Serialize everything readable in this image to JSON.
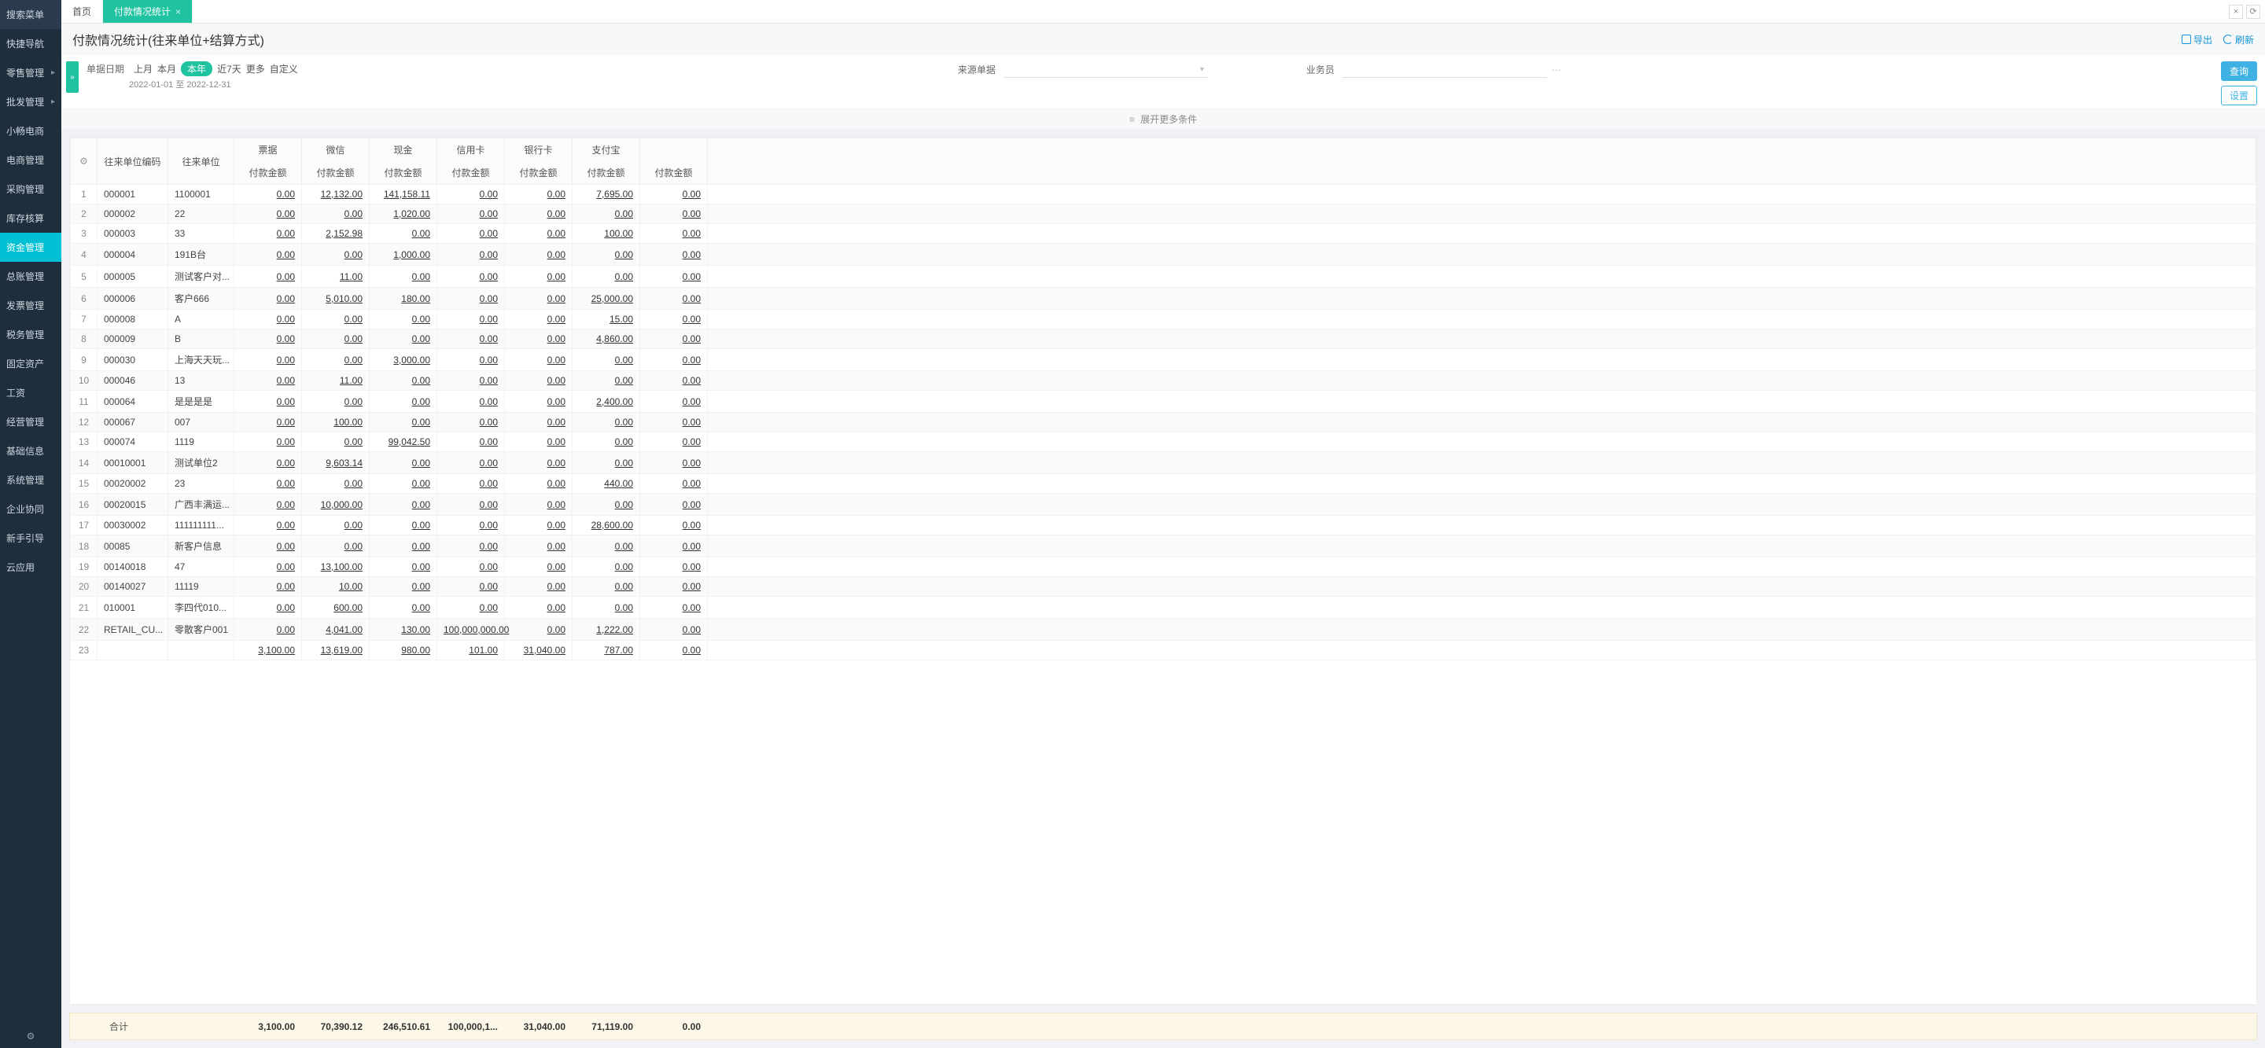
{
  "sidebar": {
    "items": [
      {
        "label": "搜索菜单",
        "caret": false
      },
      {
        "label": "快捷导航",
        "caret": false
      },
      {
        "label": "零售管理",
        "caret": true
      },
      {
        "label": "批发管理",
        "caret": true
      },
      {
        "label": "小畅电商",
        "caret": false
      },
      {
        "label": "电商管理",
        "caret": false
      },
      {
        "label": "采购管理",
        "caret": false
      },
      {
        "label": "库存核算",
        "caret": false
      },
      {
        "label": "资金管理",
        "caret": false,
        "active": true
      },
      {
        "label": "总账管理",
        "caret": false
      },
      {
        "label": "发票管理",
        "caret": false
      },
      {
        "label": "税务管理",
        "caret": false
      },
      {
        "label": "固定资产",
        "caret": false
      },
      {
        "label": "工资",
        "caret": false
      },
      {
        "label": "经营管理",
        "caret": false
      },
      {
        "label": "基础信息",
        "caret": false
      },
      {
        "label": "系统管理",
        "caret": false
      },
      {
        "label": "企业协同",
        "caret": false
      },
      {
        "label": "新手引导",
        "caret": false
      },
      {
        "label": "云应用",
        "caret": false
      }
    ]
  },
  "tabs": [
    {
      "label": "首页",
      "closable": false
    },
    {
      "label": "付款情况统计",
      "closable": true,
      "active": true
    }
  ],
  "header": {
    "title": "付款情况统计(往来单位+结算方式)",
    "export": "导出",
    "refresh": "刷新"
  },
  "filter": {
    "date_label": "单据日期",
    "ranges": [
      "上月",
      "本月",
      "本年",
      "近7天",
      "更多",
      "自定义"
    ],
    "selected_range": "本年",
    "date_text": "2022-01-01 至 2022-12-31",
    "source_label": "来源单据",
    "source_value": "",
    "staff_label": "业务员",
    "staff_value": "",
    "btn_query": "查询",
    "btn_config": "设置",
    "expand_more": "展开更多条件"
  },
  "table": {
    "col_code": "往来单位编码",
    "col_name": "往来单位",
    "group_cols": [
      "票据",
      "微信",
      "现金",
      "信用卡",
      "银行卡",
      "支付宝",
      ""
    ],
    "sub_col": "付款金额",
    "rows": [
      {
        "idx": "1",
        "code": "000001",
        "name": "1100001",
        "v": [
          "0.00",
          "12,132.00",
          "141,158.11",
          "0.00",
          "0.00",
          "7,695.00",
          "0.00"
        ]
      },
      {
        "idx": "2",
        "code": "000002",
        "name": "22",
        "v": [
          "0.00",
          "0.00",
          "1,020.00",
          "0.00",
          "0.00",
          "0.00",
          "0.00"
        ]
      },
      {
        "idx": "3",
        "code": "000003",
        "name": "33",
        "v": [
          "0.00",
          "2,152.98",
          "0.00",
          "0.00",
          "0.00",
          "100.00",
          "0.00"
        ]
      },
      {
        "idx": "4",
        "code": "000004",
        "name": "191B台",
        "v": [
          "0.00",
          "0.00",
          "1,000.00",
          "0.00",
          "0.00",
          "0.00",
          "0.00"
        ]
      },
      {
        "idx": "5",
        "code": "000005",
        "name": "测试客户对...",
        "v": [
          "0.00",
          "11.00",
          "0.00",
          "0.00",
          "0.00",
          "0.00",
          "0.00"
        ]
      },
      {
        "idx": "6",
        "code": "000006",
        "name": "客户666",
        "v": [
          "0.00",
          "5,010.00",
          "180.00",
          "0.00",
          "0.00",
          "25,000.00",
          "0.00"
        ]
      },
      {
        "idx": "7",
        "code": "000008",
        "name": "A",
        "v": [
          "0.00",
          "0.00",
          "0.00",
          "0.00",
          "0.00",
          "15.00",
          "0.00"
        ]
      },
      {
        "idx": "8",
        "code": "000009",
        "name": "B",
        "v": [
          "0.00",
          "0.00",
          "0.00",
          "0.00",
          "0.00",
          "4,860.00",
          "0.00"
        ]
      },
      {
        "idx": "9",
        "code": "000030",
        "name": "上海天天玩...",
        "v": [
          "0.00",
          "0.00",
          "3,000.00",
          "0.00",
          "0.00",
          "0.00",
          "0.00"
        ]
      },
      {
        "idx": "10",
        "code": "000046",
        "name": "13",
        "v": [
          "0.00",
          "11.00",
          "0.00",
          "0.00",
          "0.00",
          "0.00",
          "0.00"
        ]
      },
      {
        "idx": "11",
        "code": "000064",
        "name": "是是是是",
        "v": [
          "0.00",
          "0.00",
          "0.00",
          "0.00",
          "0.00",
          "2,400.00",
          "0.00"
        ]
      },
      {
        "idx": "12",
        "code": "000067",
        "name": "007",
        "v": [
          "0.00",
          "100.00",
          "0.00",
          "0.00",
          "0.00",
          "0.00",
          "0.00"
        ]
      },
      {
        "idx": "13",
        "code": "000074",
        "name": "1119",
        "v": [
          "0.00",
          "0.00",
          "99,042.50",
          "0.00",
          "0.00",
          "0.00",
          "0.00"
        ]
      },
      {
        "idx": "14",
        "code": "00010001",
        "name": "测试单位2",
        "v": [
          "0.00",
          "9,603.14",
          "0.00",
          "0.00",
          "0.00",
          "0.00",
          "0.00"
        ]
      },
      {
        "idx": "15",
        "code": "00020002",
        "name": "23",
        "v": [
          "0.00",
          "0.00",
          "0.00",
          "0.00",
          "0.00",
          "440.00",
          "0.00"
        ]
      },
      {
        "idx": "16",
        "code": "00020015",
        "name": "广西丰满运...",
        "v": [
          "0.00",
          "10,000.00",
          "0.00",
          "0.00",
          "0.00",
          "0.00",
          "0.00"
        ]
      },
      {
        "idx": "17",
        "code": "00030002",
        "name": "111111111...",
        "v": [
          "0.00",
          "0.00",
          "0.00",
          "0.00",
          "0.00",
          "28,600.00",
          "0.00"
        ]
      },
      {
        "idx": "18",
        "code": "00085",
        "name": "新客户信息",
        "v": [
          "0.00",
          "0.00",
          "0.00",
          "0.00",
          "0.00",
          "0.00",
          "0.00"
        ]
      },
      {
        "idx": "19",
        "code": "00140018",
        "name": "47",
        "v": [
          "0.00",
          "13,100.00",
          "0.00",
          "0.00",
          "0.00",
          "0.00",
          "0.00"
        ]
      },
      {
        "idx": "20",
        "code": "00140027",
        "name": "11119",
        "v": [
          "0.00",
          "10.00",
          "0.00",
          "0.00",
          "0.00",
          "0.00",
          "0.00"
        ]
      },
      {
        "idx": "21",
        "code": "010001",
        "name": "李四代010...",
        "v": [
          "0.00",
          "600.00",
          "0.00",
          "0.00",
          "0.00",
          "0.00",
          "0.00"
        ]
      },
      {
        "idx": "22",
        "code": "RETAIL_CU...",
        "name": "零散客户001",
        "v": [
          "0.00",
          "4,041.00",
          "130.00",
          "100,000,000.00",
          "0.00",
          "1,222.00",
          "0.00"
        ]
      },
      {
        "idx": "23",
        "code": "",
        "name": "",
        "v": [
          "3,100.00",
          "13,619.00",
          "980.00",
          "101.00",
          "31,040.00",
          "787.00",
          "0.00"
        ]
      }
    ],
    "total_label": "合计",
    "totals": [
      "3,100.00",
      "70,390.12",
      "246,510.61",
      "100,000,1...",
      "31,040.00",
      "71,119.00",
      "0.00"
    ]
  },
  "colors": {
    "sidebar_bg": "#1f2e3d",
    "accent": "#1fc3a0",
    "primary_btn": "#3fb1e3",
    "total_bg": "#fdf7e8"
  }
}
